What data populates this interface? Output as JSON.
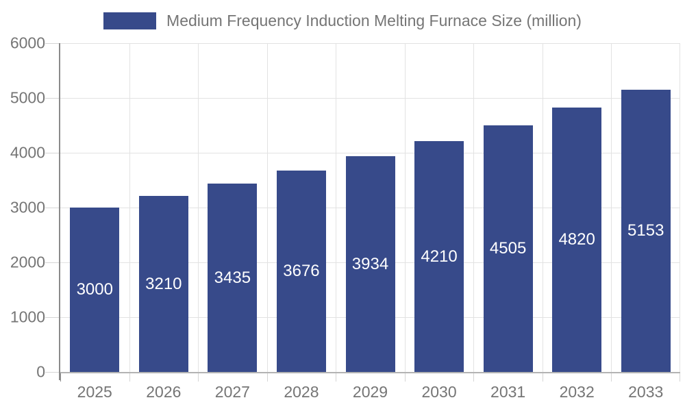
{
  "legend": {
    "series_label": "Medium Frequency Induction Melting Furnace Size (million)"
  },
  "chart_data": {
    "type": "bar",
    "title": "Medium Frequency Induction Melting Furnace Size (million)",
    "categories": [
      "2025",
      "2026",
      "2027",
      "2028",
      "2029",
      "2030",
      "2031",
      "2032",
      "2033"
    ],
    "values": [
      3000,
      3210,
      3435,
      3676,
      3934,
      4210,
      4505,
      4820,
      5153
    ],
    "series": [
      {
        "name": "Medium Frequency Induction Melting Furnace Size (million)",
        "values": [
          3000,
          3210,
          3435,
          3676,
          3934,
          4210,
          4505,
          4820,
          5153
        ]
      }
    ],
    "xlabel": "",
    "ylabel": "",
    "ylim": [
      0,
      6000
    ],
    "yticks": [
      0,
      1000,
      2000,
      3000,
      4000,
      5000,
      6000
    ],
    "grid": true,
    "legend_position": "top",
    "value_labels": "inside-center",
    "colors": {
      "bar": "#374a8a",
      "value_label_text": "#ffffff",
      "axis_text": "#757575",
      "y_axis_line": "#8a8a8a",
      "x_axis_line": "#b3b3b3",
      "gridline": "#e2e2e2",
      "tick": "#d5d5d5",
      "background": "#ffffff"
    }
  }
}
